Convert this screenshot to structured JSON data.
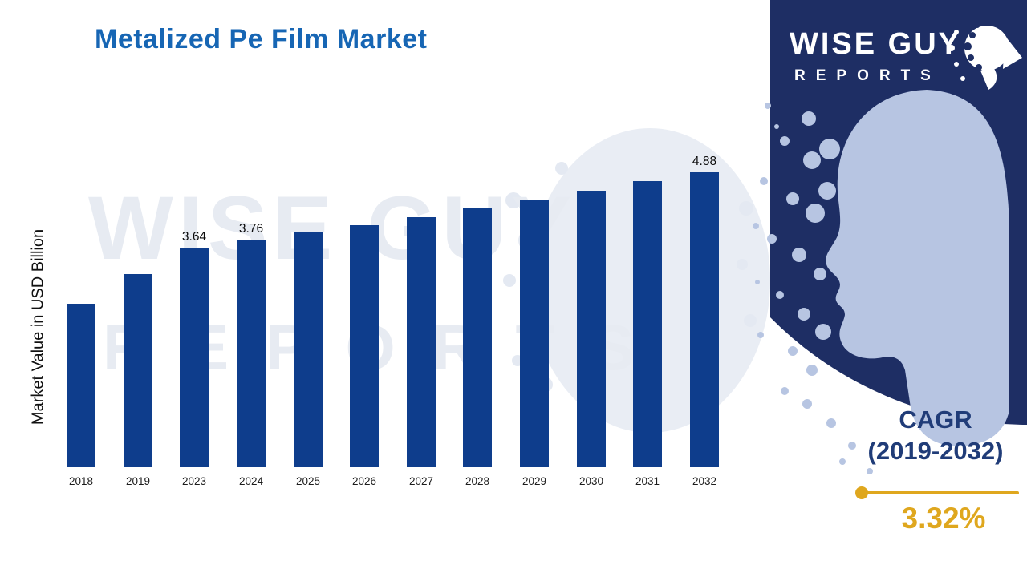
{
  "title": "Metalized Pe Film Market",
  "ylabel": "Market Value in USD Billion",
  "watermark": {
    "line1": "WISE GUY",
    "line2": "REPORTS"
  },
  "logo": {
    "line1": "WISE GUY",
    "line2": "REPORTS"
  },
  "cagr": {
    "label": "CAGR",
    "range": "(2019-2032)",
    "value": "3.32%"
  },
  "colors": {
    "bar": "#0e3d8c",
    "band": "#1e2e64",
    "title": "#1766b4",
    "gold": "#dfa71e",
    "cagr_text": "#203c78",
    "face": "#b7c5e2",
    "watermark": "#e7ebf2"
  },
  "chart_data": {
    "type": "bar",
    "categories": [
      "2018",
      "2019",
      "2023",
      "2024",
      "2025",
      "2026",
      "2027",
      "2028",
      "2029",
      "2030",
      "2031",
      "2032"
    ],
    "values": [
      2.7,
      3.19,
      3.64,
      3.76,
      3.88,
      4.0,
      4.14,
      4.28,
      4.43,
      4.58,
      4.73,
      4.88
    ],
    "data_labels": {
      "2023": "3.64",
      "2024": "3.76",
      "2032": "4.88"
    },
    "title": "Metalized Pe Film Market",
    "xlabel": "",
    "ylabel": "Market Value in USD Billion",
    "ylim": [
      0,
      5.5
    ],
    "grid": false,
    "legend": false
  }
}
